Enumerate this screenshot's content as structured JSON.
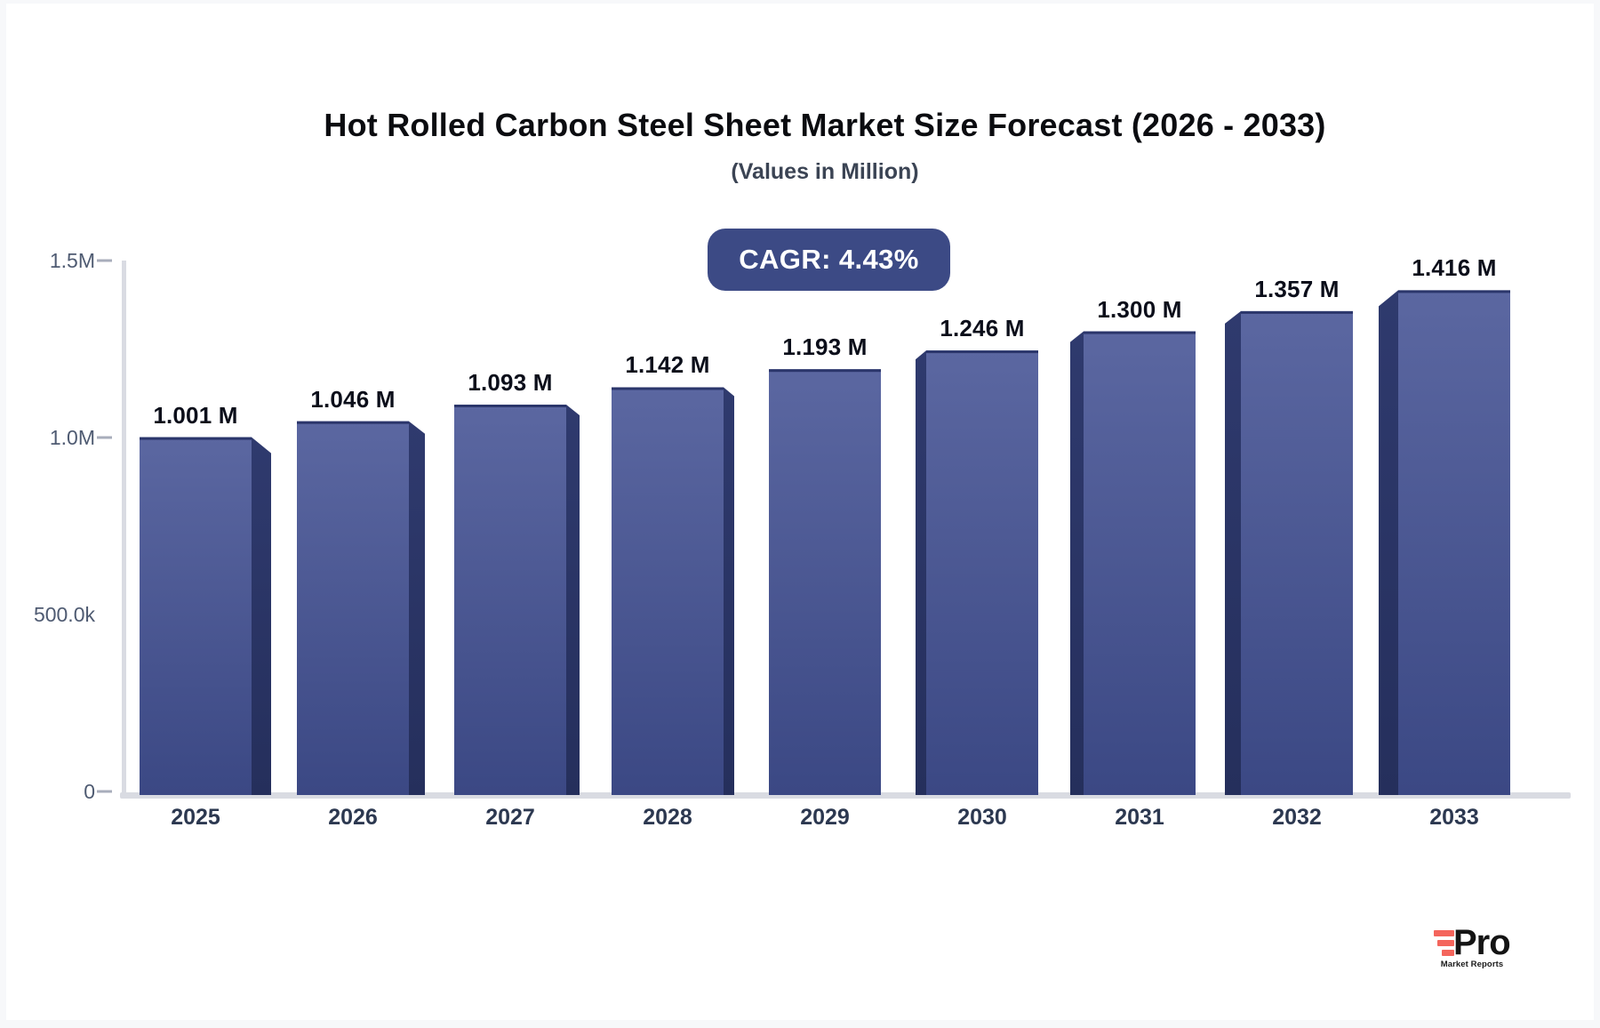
{
  "header": {
    "title": "Hot Rolled Carbon Steel Sheet Market Size Forecast (2026 - 2033)",
    "subtitle": "(Values in Million)",
    "cagr_label": "CAGR: 4.43%"
  },
  "chart_data": {
    "type": "bar",
    "title": "Hot Rolled Carbon Steel Sheet Market Size Forecast (2026 - 2033)",
    "subtitle": "(Values in Million)",
    "unit": "Million",
    "cagr_percent": 4.43,
    "categories": [
      "2025",
      "2026",
      "2027",
      "2028",
      "2029",
      "2030",
      "2031",
      "2032",
      "2033"
    ],
    "values": [
      1.001,
      1.046,
      1.093,
      1.142,
      1.193,
      1.246,
      1.3,
      1.357,
      1.416
    ],
    "value_labels": [
      "1.001 M",
      "1.046 M",
      "1.093 M",
      "1.142 M",
      "1.193 M",
      "1.246 M",
      "1.300 M",
      "1.357 M",
      "1.416 M"
    ],
    "ylim": [
      0,
      1.5
    ],
    "yticks": [
      {
        "label": "0",
        "value": 0.0,
        "dash": true
      },
      {
        "label": "500.0k",
        "value": 0.5,
        "dash": false
      },
      {
        "label": "1.0M",
        "value": 1.0,
        "dash": true
      },
      {
        "label": "1.5M",
        "value": 1.5,
        "dash": true
      }
    ],
    "grid": false,
    "legend": null
  },
  "colors": {
    "bar_face_top": "#5b67a1",
    "bar_face_bottom": "#3b4884",
    "bar_side_top": "#2f3a6e",
    "bar_side_bottom": "#252f5c",
    "bar_top_edge": "#2b366b",
    "axis": "#d9dbe2",
    "tick_dash": "#a8adbb",
    "badge_bg": "#3c4a85",
    "badge_text": "#ffffff",
    "logo_red": "#f4655c"
  },
  "logo": {
    "brand": "Pro",
    "tagline": "Market Reports"
  }
}
